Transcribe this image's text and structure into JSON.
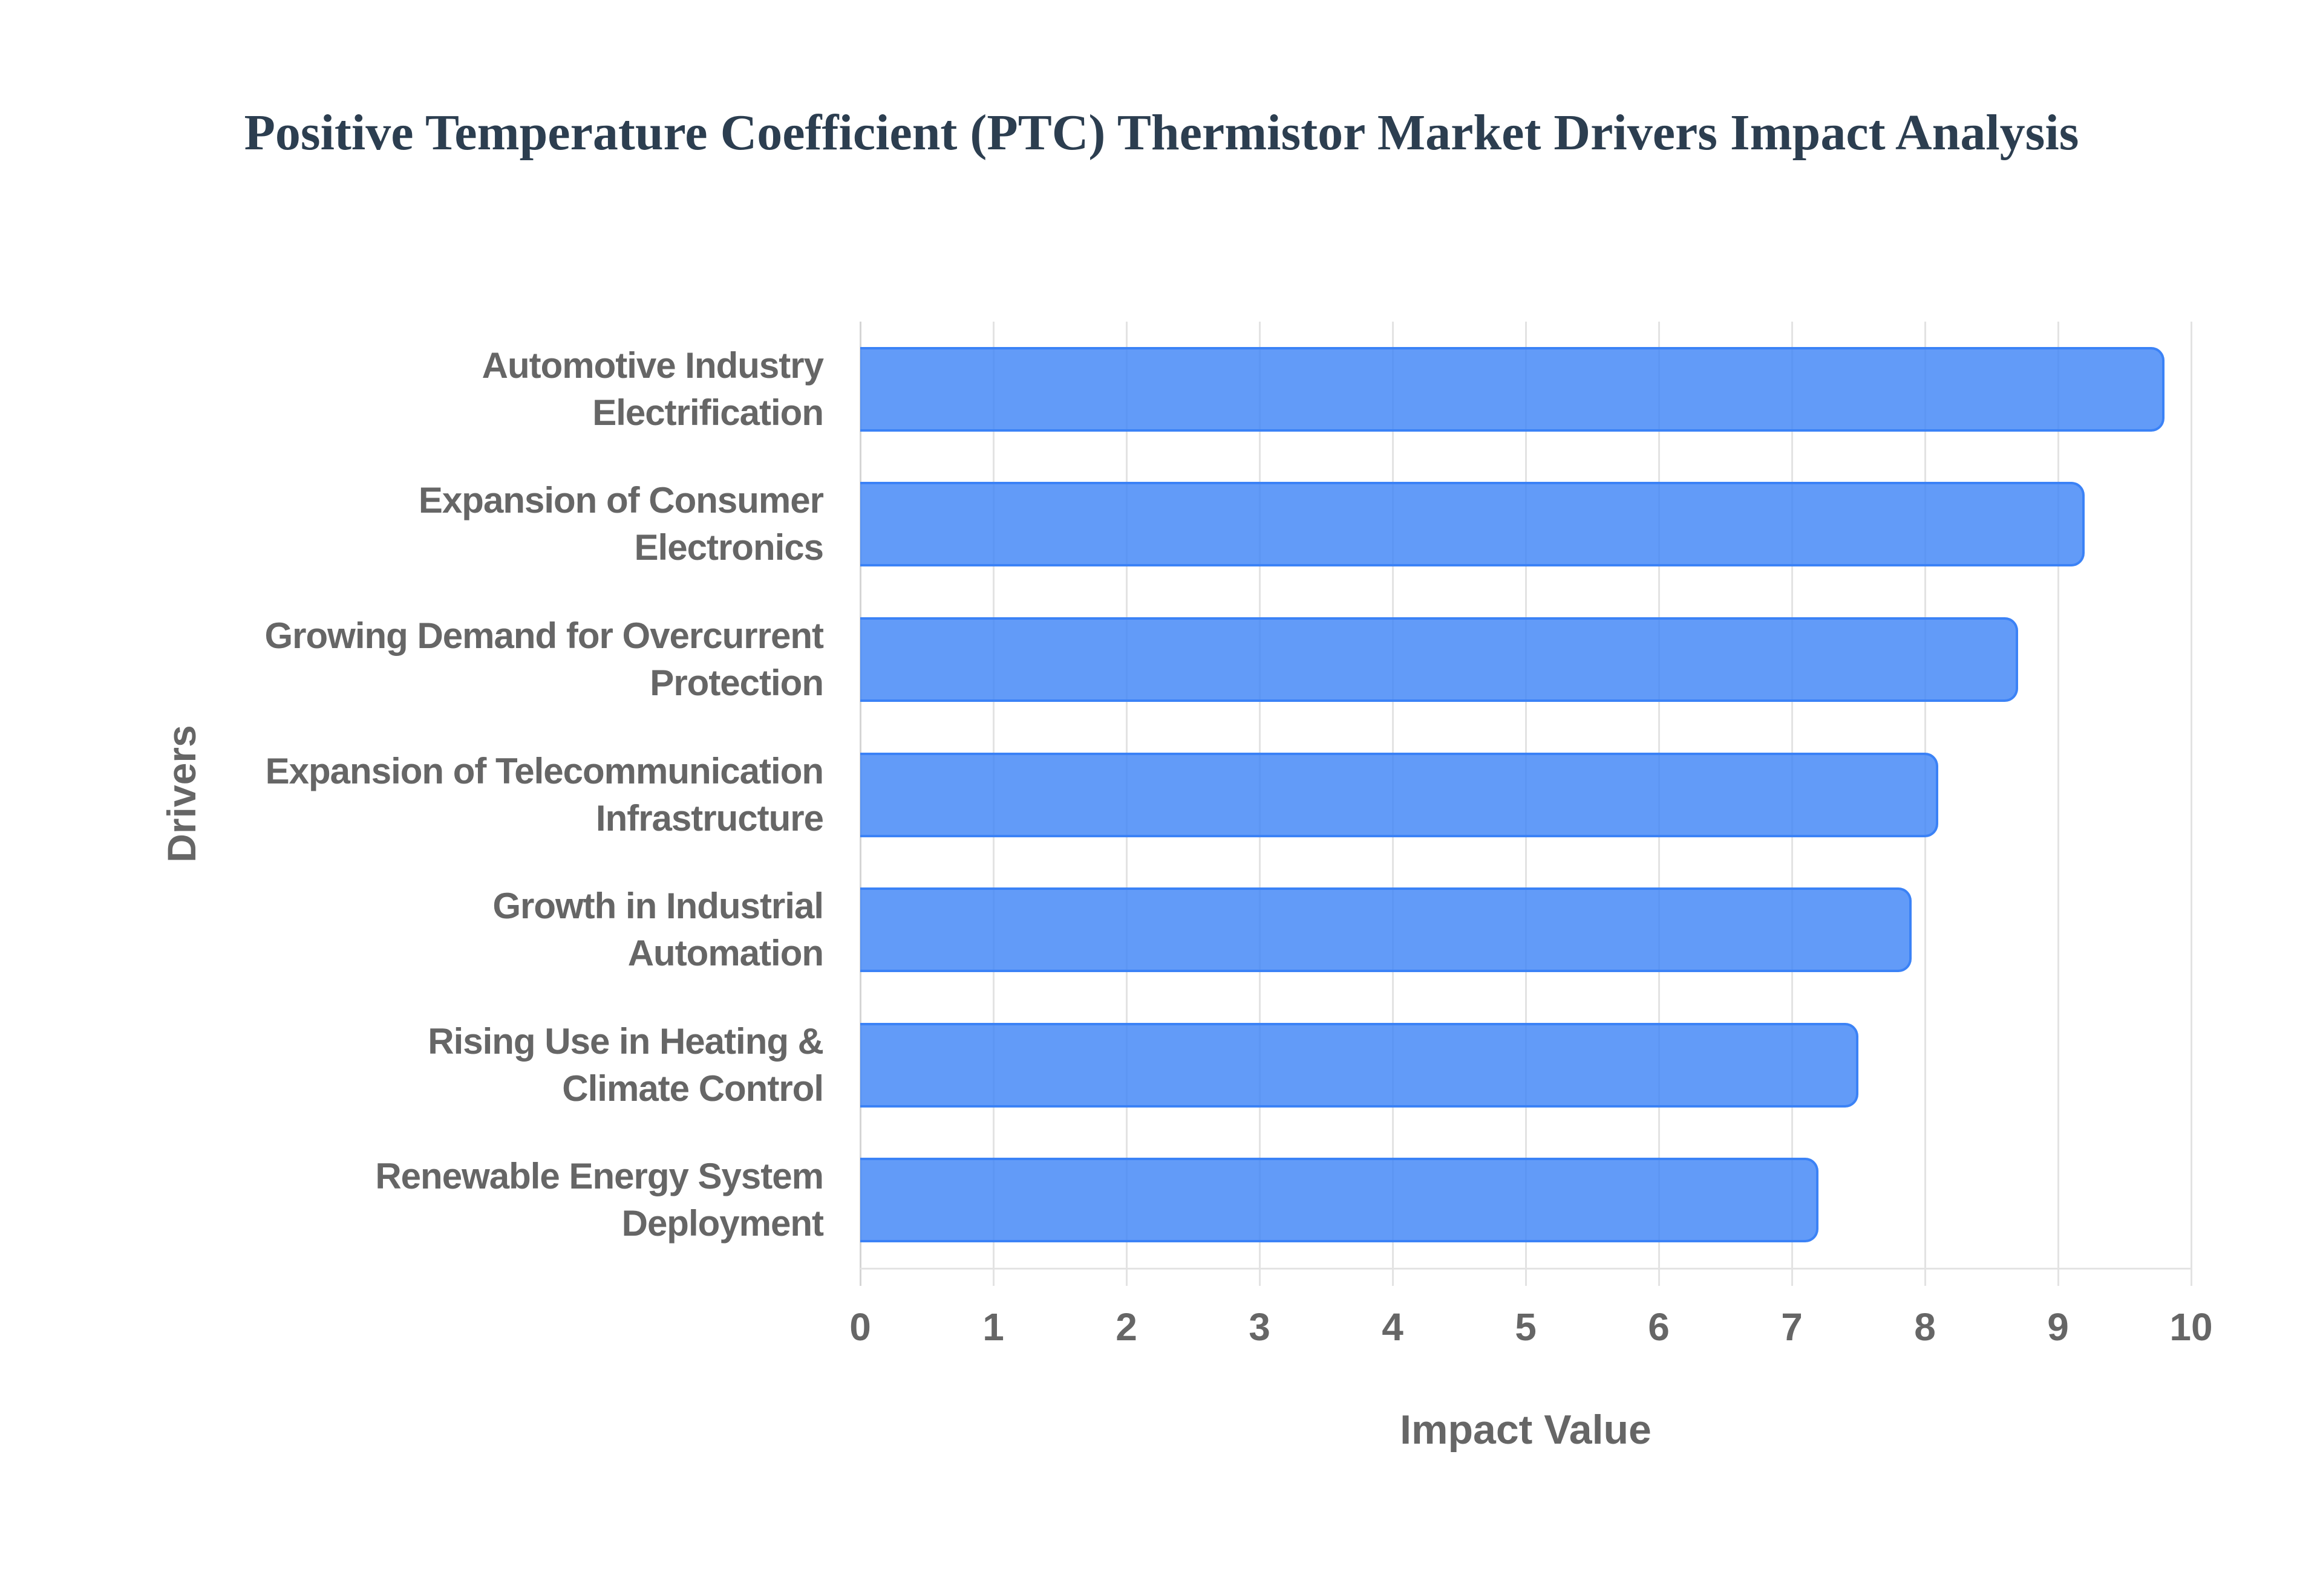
{
  "title": "Positive Temperature Coefficient (PTC) Thermistor Market Drivers Impact Analysis",
  "axes": {
    "x_title": "Impact Value",
    "y_title": "Drivers",
    "x_ticks": [
      "0",
      "1",
      "2",
      "3",
      "4",
      "5",
      "6",
      "7",
      "8",
      "9",
      "10"
    ]
  },
  "drivers": [
    {
      "line1": "Automotive Industry",
      "line2": "Electrification",
      "value": 9.8
    },
    {
      "line1": "Expansion of Consumer",
      "line2": "Electronics",
      "value": 9.2
    },
    {
      "line1": "Growing Demand for Overcurrent",
      "line2": "Protection",
      "value": 8.7
    },
    {
      "line1": "Expansion of Telecommunication",
      "line2": "Infrastructure",
      "value": 8.1
    },
    {
      "line1": "Growth in Industrial",
      "line2": "Automation",
      "value": 7.9
    },
    {
      "line1": "Rising Use in Heating &",
      "line2": "Climate Control",
      "value": 7.5
    },
    {
      "line1": "Renewable Energy System",
      "line2": "Deployment",
      "value": 7.2
    }
  ],
  "colors": {
    "bar_fill": "rgba(59,130,246,0.8)",
    "bar_border": "#3b82f6",
    "title": "#2c3e50",
    "axis_text": "#666666",
    "grid": "#e3e3e3"
  },
  "chart_data": {
    "type": "bar",
    "orientation": "horizontal",
    "title": "Positive Temperature Coefficient (PTC) Thermistor Market Drivers Impact Analysis",
    "categories": [
      "Automotive Industry Electrification",
      "Expansion of Consumer Electronics",
      "Growing Demand for Overcurrent Protection",
      "Expansion of Telecommunication Infrastructure",
      "Growth in Industrial Automation",
      "Rising Use in Heating & Climate Control",
      "Renewable Energy System Deployment"
    ],
    "values": [
      9.8,
      9.2,
      8.7,
      8.1,
      7.9,
      7.5,
      7.2
    ],
    "xlabel": "Impact Value",
    "ylabel": "Drivers",
    "xlim": [
      0,
      10
    ],
    "x_ticks": [
      0,
      1,
      2,
      3,
      4,
      5,
      6,
      7,
      8,
      9,
      10
    ],
    "grid": true,
    "legend": false
  }
}
